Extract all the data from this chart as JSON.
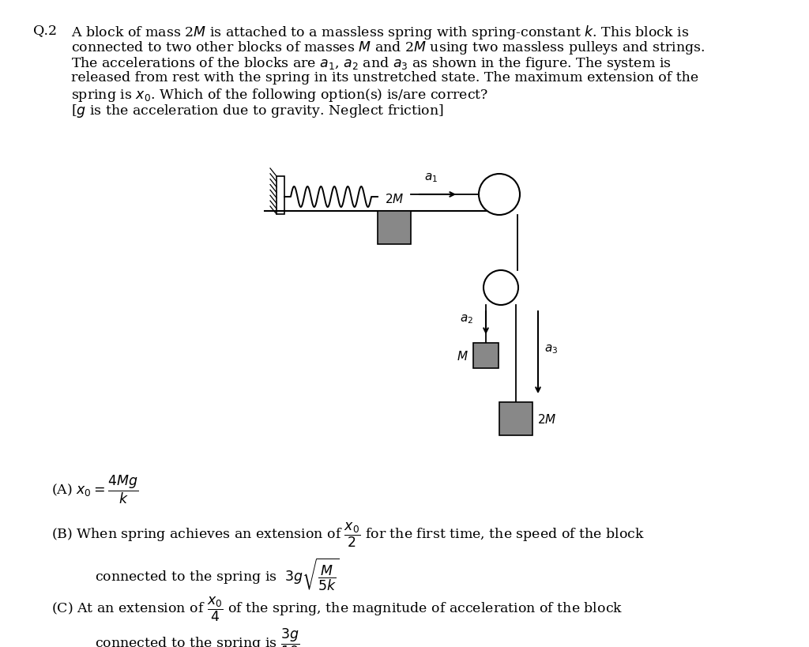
{
  "bg_color": "#ffffff",
  "text_color": "#000000",
  "question_label": "Q.2",
  "question_text_lines": [
    "A block of mass 2$M$ is attached to a massless spring with spring-constant $k$. This block is",
    "connected to two other blocks of masses $M$ and 2$M$ using two massless pulleys and strings.",
    "The accelerations of the blocks are $a_1$, $a_2$ and $a_3$ as shown in the figure. The system is",
    "released from rest with the spring in its unstretched state. The maximum extension of the",
    "spring is $x_0$. Which of the following option(s) is/are correct?",
    "[$g$ is the acceleration due to gravity. Neglect friction]"
  ],
  "gray_color": "#888888",
  "dark_gray": "#666666"
}
